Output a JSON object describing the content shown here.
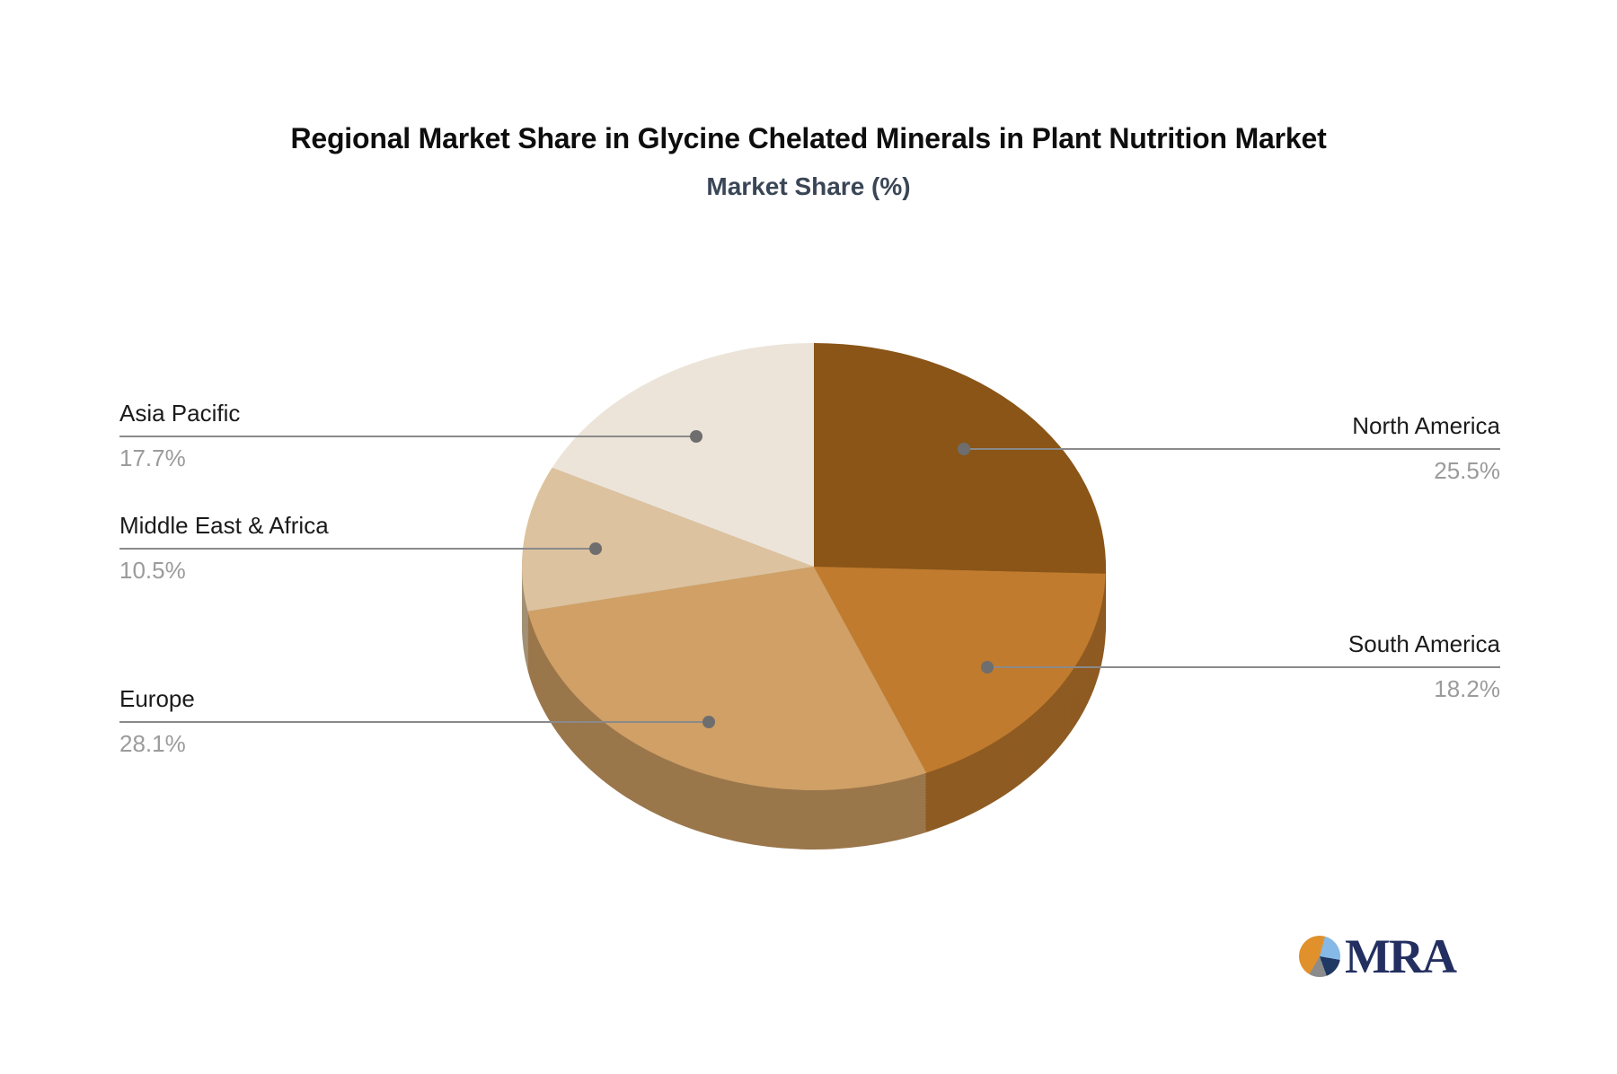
{
  "title": "Regional Market Share in Glycine Chelated Minerals in Plant Nutrition Market",
  "subtitle": "Market Share (%)",
  "chart_data": {
    "type": "pie",
    "title": "Regional Market Share in Glycine Chelated Minerals in Plant Nutrition Market",
    "subtitle": "Market Share (%)",
    "unit": "%",
    "style": "3d-pie",
    "start_angle_deg": 0,
    "direction": "clockwise",
    "legend_position": "callout-labels",
    "slices": [
      {
        "label": "North America",
        "value": 25.5,
        "display": "25.5%",
        "color": "#8A5517",
        "label_side": "right"
      },
      {
        "label": "South America",
        "value": 18.2,
        "display": "18.2%",
        "color": "#C07B2E",
        "label_side": "right"
      },
      {
        "label": "Europe",
        "value": 28.1,
        "display": "28.1%",
        "color": "#D0A066",
        "label_side": "left"
      },
      {
        "label": "Middle East & Africa",
        "value": 10.5,
        "display": "10.5%",
        "color": "#DCC29E",
        "label_side": "left"
      },
      {
        "label": "Asia Pacific",
        "value": 17.7,
        "display": "17.7%",
        "color": "#EDE4D9",
        "label_side": "left"
      }
    ],
    "leader_line_color": "#8a8a8a",
    "leader_dot_color": "#6e6e6e",
    "label_name_color": "#1b1b1b",
    "label_value_color": "#9b9b9b"
  },
  "logo": {
    "text": "MRA",
    "text_color": "#232f60",
    "icon_colors": {
      "orange": "#e0912c",
      "light_blue": "#86b9e6",
      "navy": "#1f3864",
      "gray": "#8c8c8c"
    }
  }
}
